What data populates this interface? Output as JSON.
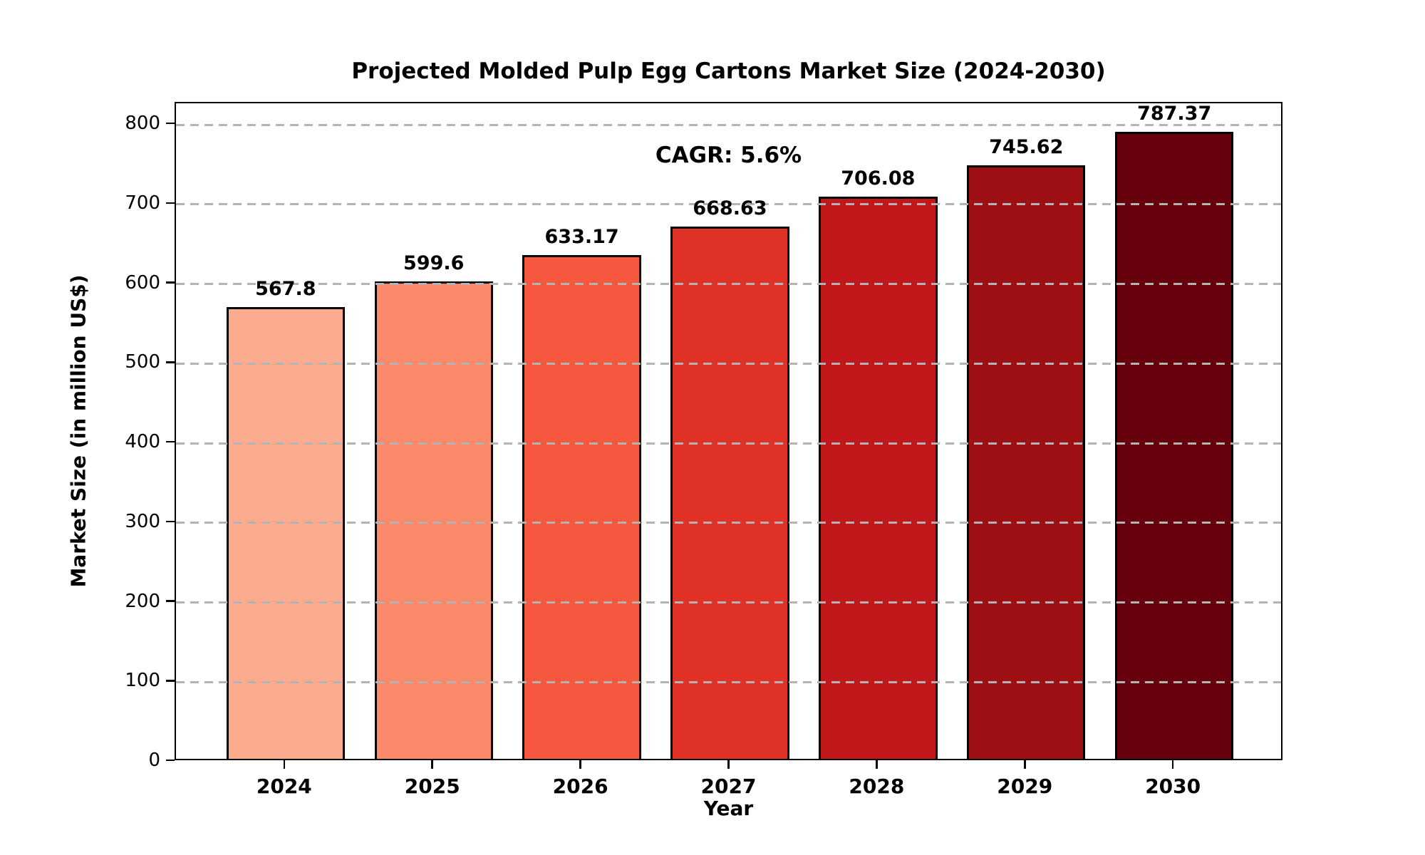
{
  "chart_data": {
    "type": "bar",
    "title": "Projected Molded Pulp Egg Cartons Market Size (2024-2030)",
    "xlabel": "Year",
    "ylabel": "Market Size (in million US$)",
    "categories": [
      "2024",
      "2025",
      "2026",
      "2027",
      "2028",
      "2029",
      "2030"
    ],
    "values": [
      567.8,
      599.6,
      633.17,
      668.63,
      706.08,
      745.62,
      787.37
    ],
    "value_labels": [
      "567.8",
      "599.6",
      "633.17",
      "668.63",
      "706.08",
      "745.62",
      "787.37"
    ],
    "annotation": "CAGR: 5.6%",
    "yticks": [
      0,
      100,
      200,
      300,
      400,
      500,
      600,
      700,
      800
    ],
    "ylim": [
      0,
      827
    ],
    "bar_colors": [
      "#fcab8f",
      "#fc8a6a",
      "#f5583e",
      "#e03127",
      "#c2181c",
      "#9f1015",
      "#67000d"
    ],
    "bar_edge_color": "#000000",
    "grid": "horizontal dashed, drawn above bars",
    "grid_color": "#b3b3b3",
    "background_color": "#ffffff",
    "legend_position": "none"
  }
}
